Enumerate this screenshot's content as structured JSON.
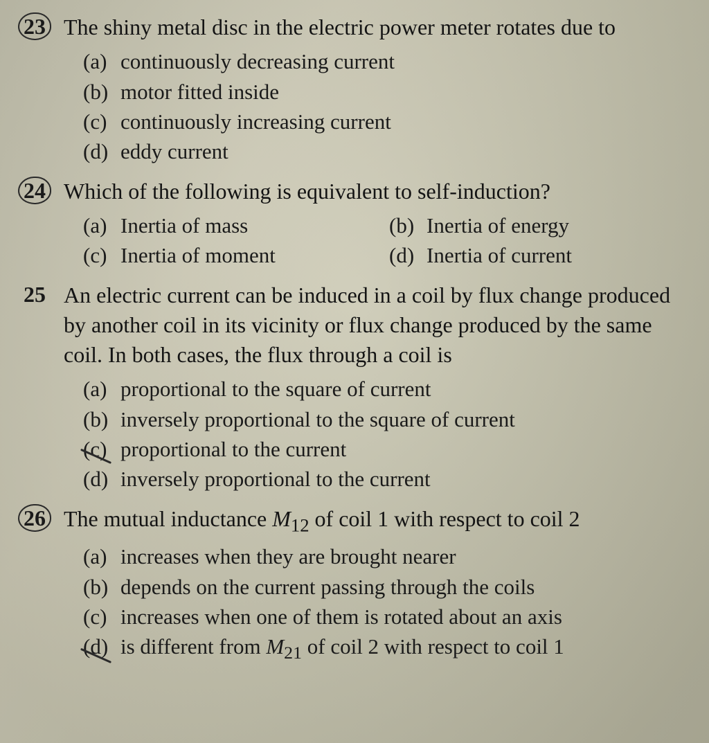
{
  "questions": [
    {
      "number": "23",
      "circled": true,
      "stem": "The shiny metal disc in the electric power meter rotates due to",
      "two_col": false,
      "options": [
        {
          "letter": "(a)",
          "text": "continuously decreasing current",
          "struck": false
        },
        {
          "letter": "(b)",
          "text": "motor fitted inside",
          "struck": false
        },
        {
          "letter": "(c)",
          "text": "continuously increasing current",
          "struck": false
        },
        {
          "letter": "(d)",
          "text": "eddy current",
          "struck": false
        }
      ]
    },
    {
      "number": "24",
      "circled": true,
      "stem": "Which of the following is equivalent to self-induction?",
      "two_col": true,
      "options": [
        {
          "letter": "(a)",
          "text": "Inertia of mass",
          "struck": false
        },
        {
          "letter": "(b)",
          "text": "Inertia of energy",
          "struck": false
        },
        {
          "letter": "(c)",
          "text": "Inertia of moment",
          "struck": false
        },
        {
          "letter": "(d)",
          "text": "Inertia of current",
          "struck": false
        }
      ]
    },
    {
      "number": "25",
      "circled": false,
      "stem": "An electric current can be induced in a coil by flux change produced by another coil in its vicinity or flux change produced by the same coil. In both cases, the flux through a coil is",
      "two_col": false,
      "options": [
        {
          "letter": "(a)",
          "text": "proportional to the square of current",
          "struck": false
        },
        {
          "letter": "(b)",
          "text": "inversely proportional to the square of current",
          "struck": false
        },
        {
          "letter": "(c)",
          "text": "proportional to the current",
          "struck": true
        },
        {
          "letter": "(d)",
          "text": "inversely proportional to the current",
          "struck": false
        }
      ]
    },
    {
      "number": "26",
      "circled": true,
      "stem_html": "The mutual inductance <span class=\"sub\">M</span><sub>12</sub> of coil 1 with respect to coil 2",
      "two_col": false,
      "options": [
        {
          "letter": "(a)",
          "text": "increases when they are brought nearer",
          "struck": false
        },
        {
          "letter": "(b)",
          "text": "depends on the current passing through the coils",
          "struck": false
        },
        {
          "letter": "(c)",
          "text": "increases when one of them is rotated about an axis",
          "struck": false
        },
        {
          "letter": "(d)",
          "text_html": "is different from <span class=\"sub\">M</span><sub>21</sub> of coil 2 with respect to coil 1",
          "struck": true
        }
      ]
    }
  ]
}
